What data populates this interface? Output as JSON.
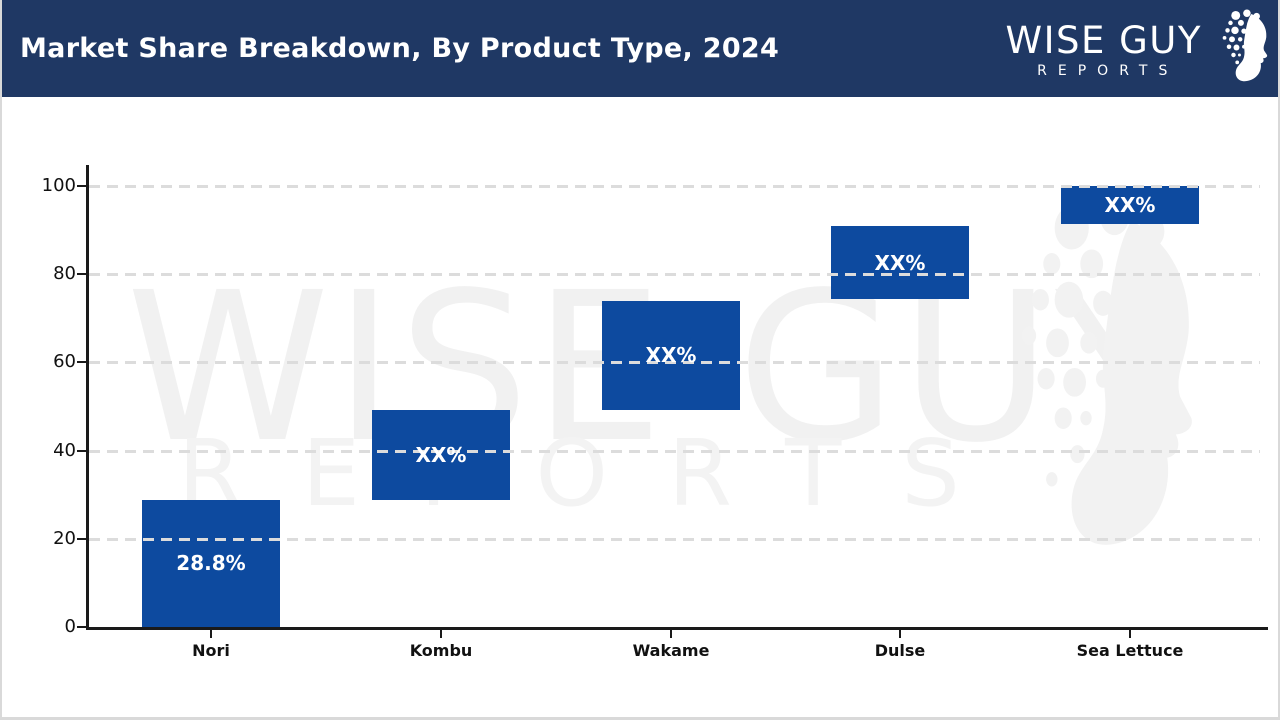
{
  "header": {
    "title": "Market Share Breakdown, By Product Type, 2024",
    "bg_color": "#1f3864",
    "logo": {
      "line1": "WISE GUY",
      "line2": "REPORTS"
    }
  },
  "watermark": {
    "line1": "WISE GUY",
    "line2": "REPORTS"
  },
  "chart_data": {
    "type": "bar",
    "subtype": "waterfall",
    "title": "Market Share Breakdown, By Product Type, 2024",
    "categories": [
      "Nori",
      "Kombu",
      "Wakame",
      "Dulse",
      "Sea Lettuce"
    ],
    "bars": [
      {
        "category": "Nori",
        "label": "28.8%",
        "start": 0,
        "end": 28.8
      },
      {
        "category": "Kombu",
        "label": "XX%",
        "start": 28.8,
        "end": 49.2
      },
      {
        "category": "Wakame",
        "label": "XX%",
        "start": 49.3,
        "end": 73.9
      },
      {
        "category": "Dulse",
        "label": "XX%",
        "start": 74.3,
        "end": 90.9
      },
      {
        "category": "Sea Lettuce",
        "label": "XX%",
        "start": 91.3,
        "end": 100
      }
    ],
    "xlabel": "",
    "ylabel": "",
    "ylim": [
      0,
      100
    ],
    "yticks": [
      "0",
      "20",
      "40",
      "60",
      "80",
      "100"
    ],
    "grid": "horizontal-dashed",
    "legend": "none",
    "bar_color": "#0d4a9f",
    "bar_label_color": "#ffffff",
    "axis_color": "#1a1a1a",
    "gridline_color": "#dcdcdc"
  }
}
